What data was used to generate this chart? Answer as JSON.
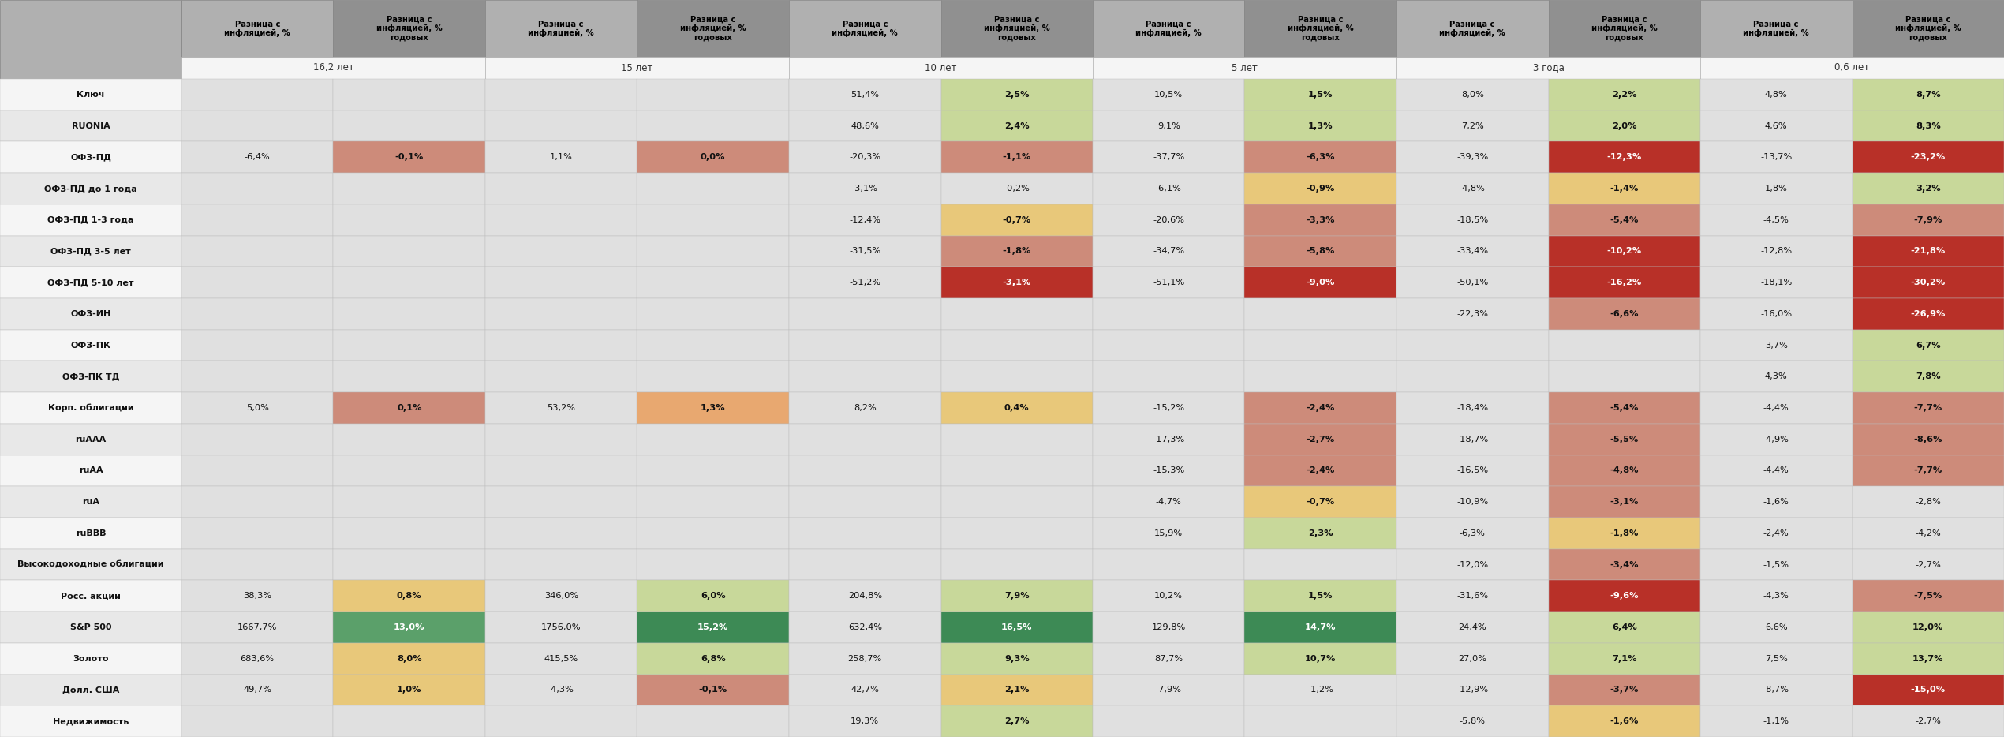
{
  "period_labels": [
    "16,2 лет",
    "15 лет",
    "10 лет",
    "5 лет",
    "3 года",
    "0,6 лет"
  ],
  "row_labels": [
    "Ключ",
    "RUONIA",
    "ОФЗ-ПД",
    "ОФЗ-ПД до 1 года",
    "ОФЗ-ПД 1-3 года",
    "ОФЗ-ПД 3-5 лет",
    "ОФЗ-ПД 5-10 лет",
    "ОФЗ-ИН",
    "ОФЗ-ПК",
    "ОФЗ-ПК ТД",
    "Корп. облигации",
    "ruAAA",
    "ruAA",
    "ruA",
    "ruBBB",
    "Высокодоходные облигации",
    "Росс. акции",
    "S&P 500",
    "Золото",
    "Долл. США",
    "Недвижимость"
  ],
  "data": [
    [
      "",
      "",
      "",
      "",
      "51,4%",
      "2,5%",
      "10,5%",
      "1,5%",
      "8,0%",
      "2,2%",
      "4,8%",
      "8,7%"
    ],
    [
      "",
      "",
      "",
      "",
      "48,6%",
      "2,4%",
      "9,1%",
      "1,3%",
      "7,2%",
      "2,0%",
      "4,6%",
      "8,3%"
    ],
    [
      "-6,4%",
      "-0,1%",
      "1,1%",
      "0,0%",
      "-20,3%",
      "-1,1%",
      "-37,7%",
      "-6,3%",
      "-39,3%",
      "-12,3%",
      "-13,7%",
      "-23,2%"
    ],
    [
      "",
      "",
      "",
      "",
      "-3,1%",
      "-0,2%",
      "-6,1%",
      "-0,9%",
      "-4,8%",
      "-1,4%",
      "1,8%",
      "3,2%"
    ],
    [
      "",
      "",
      "",
      "",
      "-12,4%",
      "-0,7%",
      "-20,6%",
      "-3,3%",
      "-18,5%",
      "-5,4%",
      "-4,5%",
      "-7,9%"
    ],
    [
      "",
      "",
      "",
      "",
      "-31,5%",
      "-1,8%",
      "-34,7%",
      "-5,8%",
      "-33,4%",
      "-10,2%",
      "-12,8%",
      "-21,8%"
    ],
    [
      "",
      "",
      "",
      "",
      "-51,2%",
      "-3,1%",
      "-51,1%",
      "-9,0%",
      "-50,1%",
      "-16,2%",
      "-18,1%",
      "-30,2%"
    ],
    [
      "",
      "",
      "",
      "",
      "",
      "",
      "",
      "",
      "-22,3%",
      "-6,6%",
      "-16,0%",
      "-26,9%"
    ],
    [
      "",
      "",
      "",
      "",
      "",
      "",
      "",
      "",
      "",
      "",
      "3,7%",
      "6,7%"
    ],
    [
      "",
      "",
      "",
      "",
      "",
      "",
      "",
      "",
      "",
      "",
      "4,3%",
      "7,8%"
    ],
    [
      "5,0%",
      "0,1%",
      "53,2%",
      "1,3%",
      "8,2%",
      "0,4%",
      "-15,2%",
      "-2,4%",
      "-18,4%",
      "-5,4%",
      "-4,4%",
      "-7,7%"
    ],
    [
      "",
      "",
      "",
      "",
      "",
      "",
      "-17,3%",
      "-2,7%",
      "-18,7%",
      "-5,5%",
      "-4,9%",
      "-8,6%"
    ],
    [
      "",
      "",
      "",
      "",
      "",
      "",
      "-15,3%",
      "-2,4%",
      "-16,5%",
      "-4,8%",
      "-4,4%",
      "-7,7%"
    ],
    [
      "",
      "",
      "",
      "",
      "",
      "",
      "-4,7%",
      "-0,7%",
      "-10,9%",
      "-3,1%",
      "-1,6%",
      "-2,8%"
    ],
    [
      "",
      "",
      "",
      "",
      "",
      "",
      "15,9%",
      "2,3%",
      "-6,3%",
      "-1,8%",
      "-2,4%",
      "-4,2%"
    ],
    [
      "",
      "",
      "",
      "",
      "",
      "",
      "",
      "",
      "-12,0%",
      "-3,4%",
      "-1,5%",
      "-2,7%"
    ],
    [
      "38,3%",
      "0,8%",
      "346,0%",
      "6,0%",
      "204,8%",
      "7,9%",
      "10,2%",
      "1,5%",
      "-31,6%",
      "-9,6%",
      "-4,3%",
      "-7,5%"
    ],
    [
      "1667,7%",
      "13,0%",
      "1756,0%",
      "15,2%",
      "632,4%",
      "16,5%",
      "129,8%",
      "14,7%",
      "24,4%",
      "6,4%",
      "6,6%",
      "12,0%"
    ],
    [
      "683,6%",
      "8,0%",
      "415,5%",
      "6,8%",
      "258,7%",
      "9,3%",
      "87,7%",
      "10,7%",
      "27,0%",
      "7,1%",
      "7,5%",
      "13,7%"
    ],
    [
      "49,7%",
      "1,0%",
      "-4,3%",
      "-0,1%",
      "42,7%",
      "2,1%",
      "-7,9%",
      "-1,2%",
      "-12,9%",
      "-3,7%",
      "-8,7%",
      "-15,0%"
    ],
    [
      "",
      "",
      "",
      "",
      "19,3%",
      "2,7%",
      "",
      "",
      "-5,8%",
      "-1,6%",
      "-1,1%",
      "-2,7%"
    ]
  ],
  "cell_colors": [
    [
      "#e0e0e0",
      "#e0e0e0",
      "#e0e0e0",
      "#e0e0e0",
      "#e0e0e0",
      "#c8d89a",
      "#e0e0e0",
      "#c8d89a",
      "#e0e0e0",
      "#c8d89a",
      "#e0e0e0",
      "#c8d89a"
    ],
    [
      "#e0e0e0",
      "#e0e0e0",
      "#e0e0e0",
      "#e0e0e0",
      "#e0e0e0",
      "#c8d89a",
      "#e0e0e0",
      "#c8d89a",
      "#e0e0e0",
      "#c8d89a",
      "#e0e0e0",
      "#c8d89a"
    ],
    [
      "#e0e0e0",
      "#cd8b7a",
      "#e0e0e0",
      "#cd8b7a",
      "#e0e0e0",
      "#cd8b7a",
      "#e0e0e0",
      "#cd8b7a",
      "#e0e0e0",
      "#b83028",
      "#e0e0e0",
      "#b83028"
    ],
    [
      "#e0e0e0",
      "#e0e0e0",
      "#e0e0e0",
      "#e0e0e0",
      "#e0e0e0",
      "#e0e0e0",
      "#e0e0e0",
      "#e8c87a",
      "#e0e0e0",
      "#e8c87a",
      "#e0e0e0",
      "#c8d89a"
    ],
    [
      "#e0e0e0",
      "#e0e0e0",
      "#e0e0e0",
      "#e0e0e0",
      "#e0e0e0",
      "#e8c87a",
      "#e0e0e0",
      "#cd8b7a",
      "#e0e0e0",
      "#cd8b7a",
      "#e0e0e0",
      "#cd8b7a"
    ],
    [
      "#e0e0e0",
      "#e0e0e0",
      "#e0e0e0",
      "#e0e0e0",
      "#e0e0e0",
      "#cd8b7a",
      "#e0e0e0",
      "#cd8b7a",
      "#e0e0e0",
      "#b83028",
      "#e0e0e0",
      "#b83028"
    ],
    [
      "#e0e0e0",
      "#e0e0e0",
      "#e0e0e0",
      "#e0e0e0",
      "#e0e0e0",
      "#b83028",
      "#e0e0e0",
      "#b83028",
      "#e0e0e0",
      "#b83028",
      "#e0e0e0",
      "#b83028"
    ],
    [
      "#e0e0e0",
      "#e0e0e0",
      "#e0e0e0",
      "#e0e0e0",
      "#e0e0e0",
      "#e0e0e0",
      "#e0e0e0",
      "#e0e0e0",
      "#e0e0e0",
      "#cd8b7a",
      "#e0e0e0",
      "#b83028"
    ],
    [
      "#e0e0e0",
      "#e0e0e0",
      "#e0e0e0",
      "#e0e0e0",
      "#e0e0e0",
      "#e0e0e0",
      "#e0e0e0",
      "#e0e0e0",
      "#e0e0e0",
      "#e0e0e0",
      "#e0e0e0",
      "#c8d89a"
    ],
    [
      "#e0e0e0",
      "#e0e0e0",
      "#e0e0e0",
      "#e0e0e0",
      "#e0e0e0",
      "#e0e0e0",
      "#e0e0e0",
      "#e0e0e0",
      "#e0e0e0",
      "#e0e0e0",
      "#e0e0e0",
      "#c8d89a"
    ],
    [
      "#e0e0e0",
      "#cd8b7a",
      "#e0e0e0",
      "#e8a870",
      "#e0e0e0",
      "#e8c87a",
      "#e0e0e0",
      "#cd8b7a",
      "#e0e0e0",
      "#cd8b7a",
      "#e0e0e0",
      "#cd8b7a"
    ],
    [
      "#e0e0e0",
      "#e0e0e0",
      "#e0e0e0",
      "#e0e0e0",
      "#e0e0e0",
      "#e0e0e0",
      "#e0e0e0",
      "#cd8b7a",
      "#e0e0e0",
      "#cd8b7a",
      "#e0e0e0",
      "#cd8b7a"
    ],
    [
      "#e0e0e0",
      "#e0e0e0",
      "#e0e0e0",
      "#e0e0e0",
      "#e0e0e0",
      "#e0e0e0",
      "#e0e0e0",
      "#cd8b7a",
      "#e0e0e0",
      "#cd8b7a",
      "#e0e0e0",
      "#cd8b7a"
    ],
    [
      "#e0e0e0",
      "#e0e0e0",
      "#e0e0e0",
      "#e0e0e0",
      "#e0e0e0",
      "#e0e0e0",
      "#e0e0e0",
      "#e8c87a",
      "#e0e0e0",
      "#cd8b7a",
      "#e0e0e0",
      "#e0e0e0"
    ],
    [
      "#e0e0e0",
      "#e0e0e0",
      "#e0e0e0",
      "#e0e0e0",
      "#e0e0e0",
      "#e0e0e0",
      "#e0e0e0",
      "#c8d89a",
      "#e0e0e0",
      "#e8c87a",
      "#e0e0e0",
      "#e0e0e0"
    ],
    [
      "#e0e0e0",
      "#e0e0e0",
      "#e0e0e0",
      "#e0e0e0",
      "#e0e0e0",
      "#e0e0e0",
      "#e0e0e0",
      "#e0e0e0",
      "#e0e0e0",
      "#cd8b7a",
      "#e0e0e0",
      "#e0e0e0"
    ],
    [
      "#e0e0e0",
      "#e8c87a",
      "#e0e0e0",
      "#c8d89a",
      "#e0e0e0",
      "#c8d89a",
      "#e0e0e0",
      "#c8d89a",
      "#e0e0e0",
      "#b83028",
      "#e0e0e0",
      "#cd8b7a"
    ],
    [
      "#e0e0e0",
      "#5ba06a",
      "#e0e0e0",
      "#3d8a55",
      "#e0e0e0",
      "#3d8a55",
      "#e0e0e0",
      "#3d8a55",
      "#e0e0e0",
      "#c8d89a",
      "#e0e0e0",
      "#c8d89a"
    ],
    [
      "#e0e0e0",
      "#e8c87a",
      "#e0e0e0",
      "#c8d89a",
      "#e0e0e0",
      "#c8d89a",
      "#e0e0e0",
      "#c8d89a",
      "#e0e0e0",
      "#c8d89a",
      "#e0e0e0",
      "#c8d89a"
    ],
    [
      "#e0e0e0",
      "#e8c87a",
      "#e0e0e0",
      "#cd8b7a",
      "#e0e0e0",
      "#e8c87a",
      "#e0e0e0",
      "#e0e0e0",
      "#e0e0e0",
      "#cd8b7a",
      "#e0e0e0",
      "#b83028"
    ],
    [
      "#e0e0e0",
      "#e0e0e0",
      "#e0e0e0",
      "#e0e0e0",
      "#e0e0e0",
      "#c8d89a",
      "#e0e0e0",
      "#e0e0e0",
      "#e0e0e0",
      "#e8c87a",
      "#e0e0e0",
      "#e0e0e0"
    ]
  ],
  "header_bg": "#b0b0b0",
  "header_fg": "#000000",
  "dark_col_bg": "#909090",
  "period_header_bg": "#f5f5f5",
  "period_header_fg": "#333333",
  "row_bg_light": "#f5f5f5",
  "row_bg_dark": "#e8e8e8"
}
